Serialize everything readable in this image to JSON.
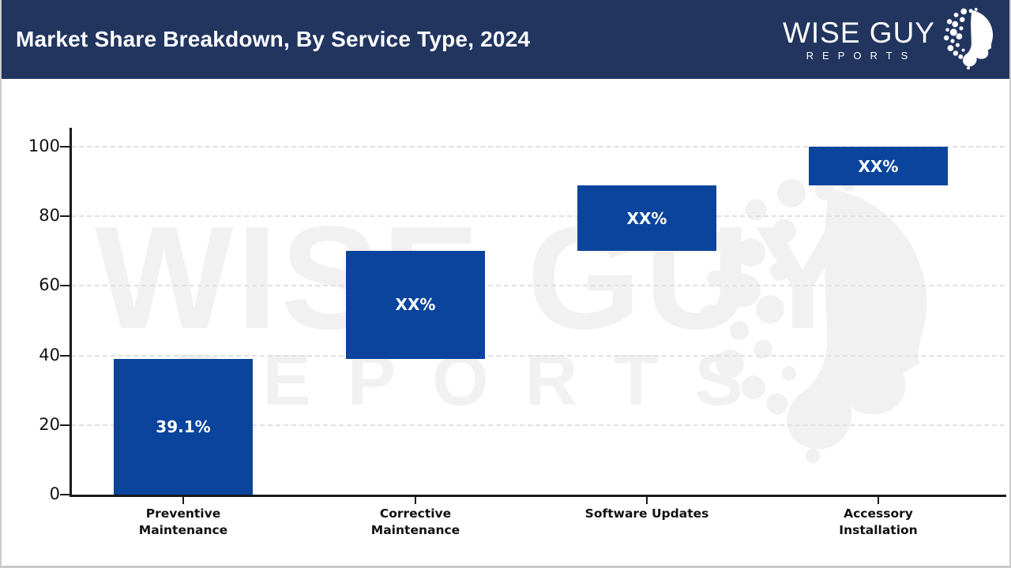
{
  "header": {
    "title": "Market Share Breakdown, By Service Type, 2024",
    "brand_line1": "WISE GUY",
    "brand_line2": "REPORTS"
  },
  "watermark": {
    "line1": "WISE GUY",
    "line2": "REPORTS"
  },
  "colors": {
    "header_bg": "#21355f",
    "bar": "#0a449c",
    "bar_label": "#ffffff",
    "grid": "#e0e0e0",
    "axis": "#1a1a1a",
    "watermark": "#f1f1f1",
    "border": "#cccccc"
  },
  "chart_data": {
    "type": "bar",
    "subtype": "waterfall",
    "title": "Market Share Breakdown, By Service Type, 2024",
    "xlabel": "",
    "ylabel": "",
    "ylim": [
      0,
      105
    ],
    "yticks": [
      0,
      20,
      40,
      60,
      80,
      100
    ],
    "grid": "horizontal dashed",
    "legend": "none",
    "categories": [
      [
        "Preventive",
        "Maintenance"
      ],
      [
        "Corrective",
        "Maintenance"
      ],
      [
        "Software Updates"
      ],
      [
        "Accessory",
        "Installation"
      ]
    ],
    "segments": [
      {
        "label": "39.1%",
        "start": 0,
        "end": 39.1
      },
      {
        "label": "XX%",
        "start": 39.1,
        "end": 70.0
      },
      {
        "label": "XX%",
        "start": 70.0,
        "end": 88.8
      },
      {
        "label": "XX%",
        "start": 88.8,
        "end": 100.0
      }
    ],
    "bar_color": "#0a449c",
    "label_color": "#ffffff"
  }
}
